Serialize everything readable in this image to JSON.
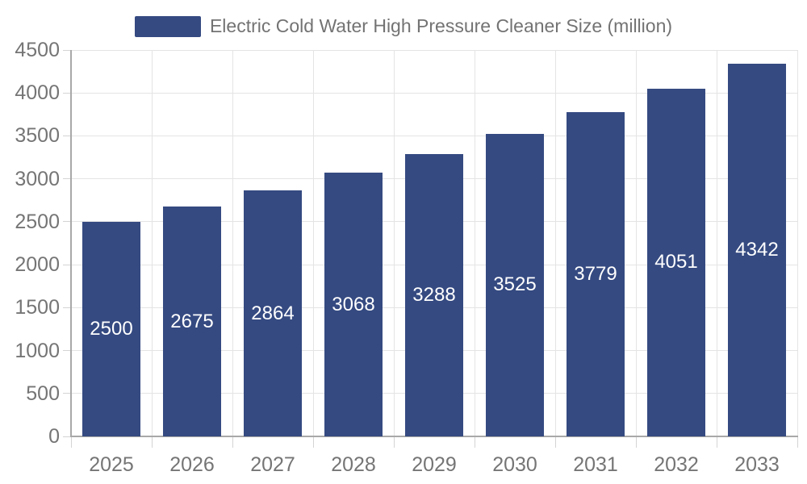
{
  "chart_data": {
    "type": "bar",
    "title": "Electric Cold Water High Pressure Cleaner Size (million)",
    "categories": [
      "2025",
      "2026",
      "2027",
      "2028",
      "2029",
      "2030",
      "2031",
      "2032",
      "2033"
    ],
    "values": [
      2500,
      2675,
      2864,
      3068,
      3288,
      3525,
      3779,
      4051,
      4342
    ],
    "xlabel": "",
    "ylabel": "",
    "ylim": [
      0,
      4500
    ],
    "ytick_interval": 500,
    "grid": true,
    "legend_position": "top",
    "bar_color": "#354A81",
    "bar_label_color": "#FFFFFF",
    "axis_text_color": "#757575",
    "grid_color": "#E4E4E4",
    "axis_line_color": "#A8A8A8",
    "tick_color": "#D4D4D4",
    "background": "#FFFFFF"
  }
}
